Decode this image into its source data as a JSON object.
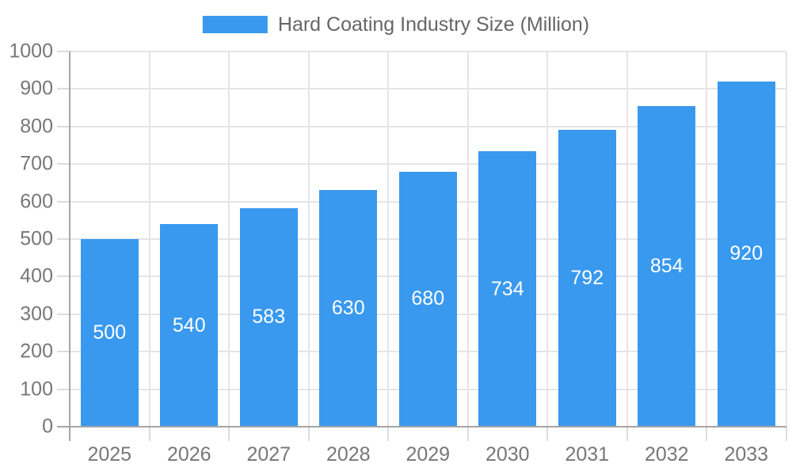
{
  "chart_data": {
    "type": "bar",
    "title": "",
    "legend": "Hard Coating Industry Size (Million)",
    "legend_position": "top",
    "categories": [
      "2025",
      "2026",
      "2027",
      "2028",
      "2029",
      "2030",
      "2031",
      "2032",
      "2033"
    ],
    "values": [
      500,
      540,
      583,
      630,
      680,
      734,
      792,
      854,
      920
    ],
    "xlabel": "",
    "ylabel": "",
    "ylim": [
      0,
      1000
    ],
    "y_ticks": [
      0,
      100,
      200,
      300,
      400,
      500,
      600,
      700,
      800,
      900,
      1000
    ],
    "grid": "both",
    "bar_label_position": "inside-center",
    "colors": {
      "bar": "#3999EE",
      "bar_label": "#FFFFFF",
      "grid_line": "#E5E5E5",
      "tick_line": "#DCDCDC",
      "axis_line": "#A6A6A6",
      "axis_text": "#777777",
      "legend_text": "#666666",
      "background": "#FFFFFF"
    }
  }
}
